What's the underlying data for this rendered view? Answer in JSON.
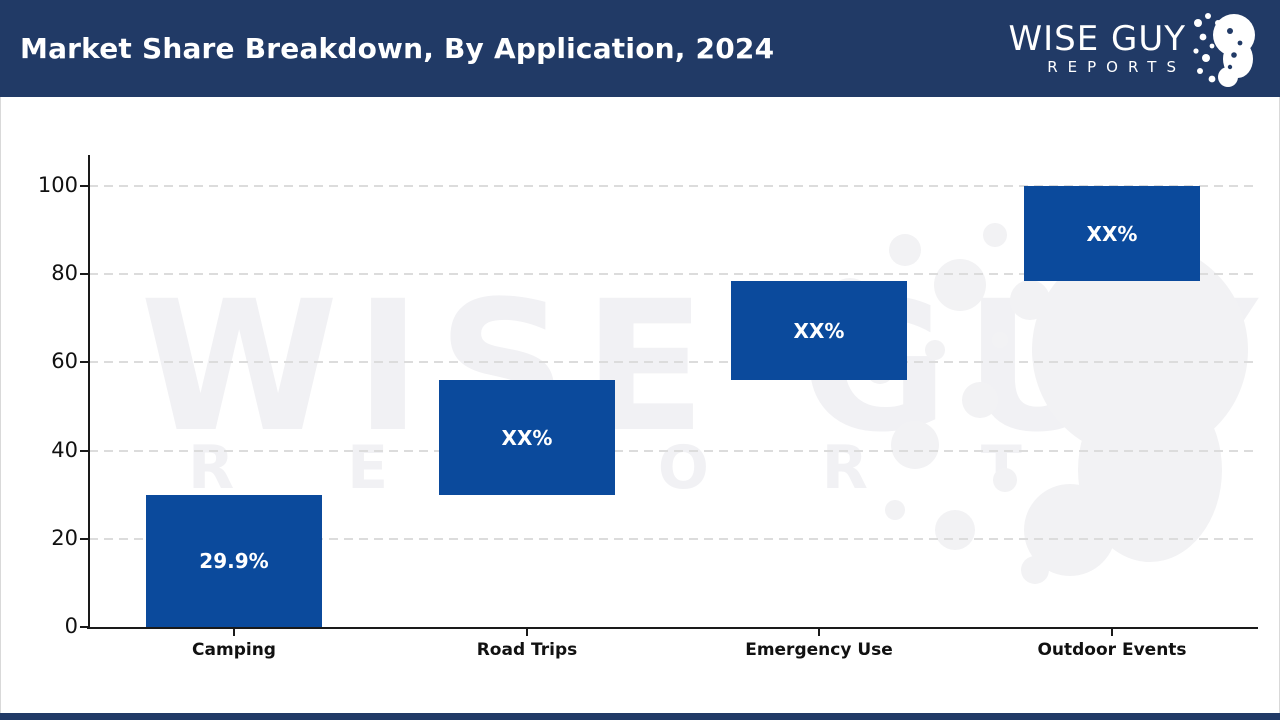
{
  "header": {
    "title": "Market Share Breakdown, By Application, 2024",
    "bg_color": "#213a66",
    "logo": {
      "line1": "WISE GUY",
      "line2": "REPORTS"
    }
  },
  "watermark": {
    "line1": "WISE GUY",
    "line2": "R E P O R T S"
  },
  "footer": {
    "bg_color": "#213a66"
  },
  "chart_data": {
    "type": "bar",
    "subtype": "waterfall",
    "title": "Market Share Breakdown, By Application, 2024",
    "categories": [
      "Camping",
      "Road Trips",
      "Emergency Use",
      "Outdoor Events"
    ],
    "segments": [
      {
        "category": "Camping",
        "start": 0,
        "end": 29.9,
        "label": "29.9%"
      },
      {
        "category": "Road Trips",
        "start": 29.9,
        "end": 56,
        "label": "XX%"
      },
      {
        "category": "Emergency Use",
        "start": 56,
        "end": 78.4,
        "label": "XX%"
      },
      {
        "category": "Outdoor Events",
        "start": 78.4,
        "end": 100,
        "label": "XX%"
      }
    ],
    "y_ticks": [
      0,
      20,
      40,
      60,
      80,
      100
    ],
    "ylim": [
      0,
      107
    ],
    "xlabel": "",
    "ylabel": "",
    "legend": "none",
    "grid": "horizontal-dashed",
    "bar_color": "#0b4a9c",
    "grid_color": "#dcdcdc",
    "axis_color": "#1a1a1a",
    "text_color": "#111111"
  }
}
